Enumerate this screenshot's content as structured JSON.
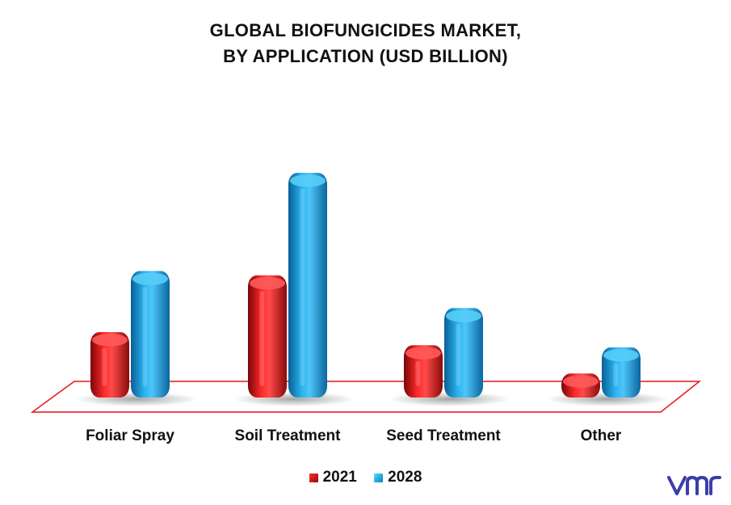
{
  "title_line1": "GLOBAL BIOFUNGICIDES MARKET,",
  "title_line2": "BY APPLICATION (USD BILLION)",
  "colors": {
    "2021": "#e8121b",
    "2028": "#1ba6e8",
    "floor_border": "#e8121b"
  },
  "chart_data": {
    "type": "bar",
    "title": "GLOBAL BIOFUNGICIDES MARKET, BY APPLICATION (USD BILLION)",
    "categories": [
      "Foliar Spray",
      "Soil Treatment",
      "Seed Treatment",
      "Other"
    ],
    "series": [
      {
        "name": "2021",
        "values": [
          0.3,
          0.56,
          0.24,
          0.11
        ]
      },
      {
        "name": "2028",
        "values": [
          0.58,
          1.03,
          0.41,
          0.23
        ]
      }
    ],
    "ylim": [
      0,
      1.2
    ],
    "grid": false,
    "legend_position": "bottom-center"
  },
  "legend": [
    {
      "label": "2021"
    },
    {
      "label": "2028"
    }
  ],
  "logo_icon": "vmr-logo-icon"
}
